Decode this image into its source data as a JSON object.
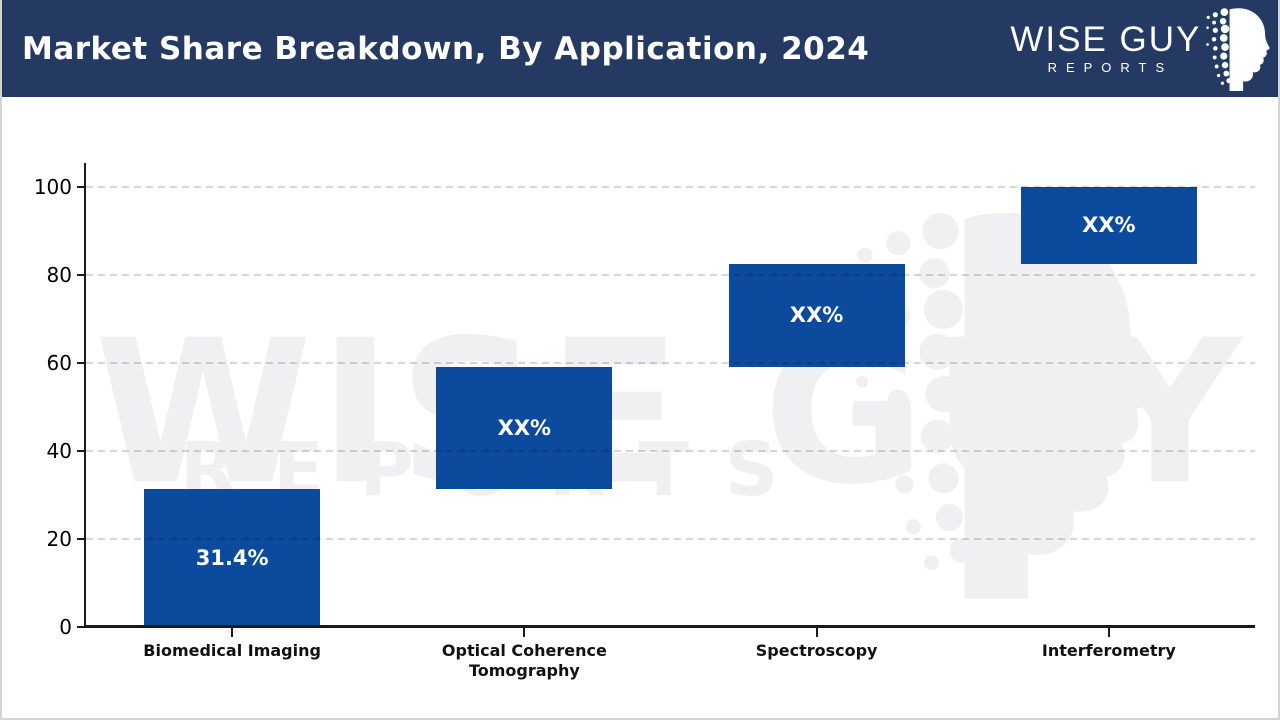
{
  "header": {
    "title": "Market Share Breakdown, By Application, 2024",
    "bg_color": "#243A62",
    "logo": {
      "line1": "WISE GUY",
      "line2": "REPORTS"
    }
  },
  "watermark": {
    "line1": "WISE GUY",
    "line2": "REPORTS"
  },
  "chart_data": {
    "type": "bar",
    "subtype": "waterfall-stacked",
    "title": "Market Share Breakdown, By Application, 2024",
    "categories": [
      "Biomedical Imaging",
      "Optical Coherence Tomography",
      "Spectroscopy",
      "Interferometry"
    ],
    "segments": [
      {
        "start": 0,
        "end": 31.4,
        "label": "31.4%"
      },
      {
        "start": 31.4,
        "end": 59,
        "label": "XX%"
      },
      {
        "start": 59,
        "end": 82.6,
        "label": "XX%"
      },
      {
        "start": 82.6,
        "end": 100,
        "label": "XX%"
      }
    ],
    "y_ticks": [
      "0",
      "20",
      "40",
      "60",
      "80",
      "100"
    ],
    "y_tick_values": [
      0,
      20,
      40,
      60,
      80,
      100
    ],
    "ylim": [
      0,
      105
    ],
    "grid": "dashed-horizontal",
    "legend": "none",
    "bar_color": "#0B4A9C",
    "grid_color": "#d6d6d6",
    "axis_color": "#1a1a1a"
  }
}
